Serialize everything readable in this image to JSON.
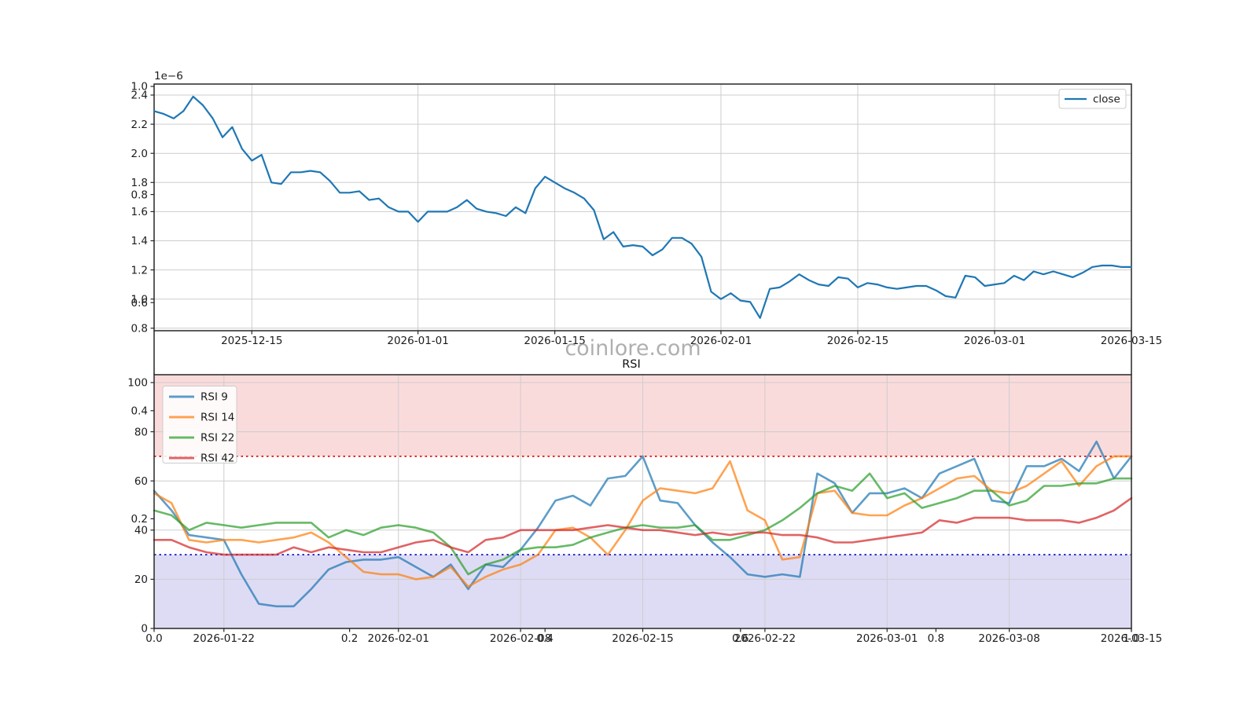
{
  "watermark": "coinlore.com",
  "overlay_axis": {
    "xtick_labels": [
      "0.0",
      "0.2",
      "0.4",
      "0.6",
      "0.8",
      "1.0"
    ],
    "ytick_labels": [
      "1.0",
      "0.8",
      "0.6",
      "0.4",
      "0.2",
      "0.0"
    ]
  },
  "chart_data": [
    {
      "type": "line",
      "role": "price",
      "title": "",
      "offset_text": "1e−6",
      "grid": true,
      "legend_position": "upper right",
      "x_start": "2025-12-05",
      "x_end": "2026-03-15",
      "xtick_labels": [
        "2025-12-15",
        "2026-01-01",
        "2026-01-15",
        "2026-02-01",
        "2026-02-15",
        "2026-03-01",
        "2026-03-15"
      ],
      "xtick_indices": [
        10,
        27,
        41,
        58,
        72,
        86,
        100
      ],
      "ytick_labels": [
        "2.4",
        "2.2",
        "2.0",
        "1.8",
        "1.6",
        "1.4",
        "1.2",
        "1.0",
        "0.8"
      ],
      "ytick_values": [
        2.4,
        2.2,
        2.0,
        1.8,
        1.6,
        1.4,
        1.2,
        1.0,
        0.8
      ],
      "ylim": [
        0.783,
        2.475
      ],
      "series": [
        {
          "name": "close",
          "color": "#1f77b4",
          "values": [
            2.29,
            2.27,
            2.24,
            2.29,
            2.39,
            2.33,
            2.24,
            2.11,
            2.18,
            2.03,
            1.95,
            1.99,
            1.8,
            1.79,
            1.87,
            1.87,
            1.88,
            1.87,
            1.81,
            1.73,
            1.73,
            1.74,
            1.68,
            1.69,
            1.63,
            1.6,
            1.6,
            1.53,
            1.6,
            1.6,
            1.6,
            1.63,
            1.68,
            1.62,
            1.6,
            1.59,
            1.57,
            1.63,
            1.59,
            1.76,
            1.84,
            1.8,
            1.76,
            1.73,
            1.69,
            1.61,
            1.41,
            1.46,
            1.36,
            1.37,
            1.36,
            1.3,
            1.34,
            1.42,
            1.42,
            1.38,
            1.29,
            1.05,
            1.0,
            1.04,
            0.99,
            0.98,
            0.87,
            1.07,
            1.08,
            1.12,
            1.17,
            1.13,
            1.1,
            1.09,
            1.15,
            1.14,
            1.08,
            1.11,
            1.1,
            1.08,
            1.07,
            1.08,
            1.09,
            1.09,
            1.06,
            1.02,
            1.01,
            1.16,
            1.15,
            1.09,
            1.1,
            1.11,
            1.16,
            1.13,
            1.19,
            1.17,
            1.19,
            1.17,
            1.15,
            1.18,
            1.22,
            1.23,
            1.23,
            1.22,
            1.22
          ]
        }
      ]
    },
    {
      "type": "line",
      "role": "rsi",
      "title": "RSI",
      "grid": true,
      "legend_position": "upper left",
      "x_start": "2026-01-18",
      "x_end": "2026-03-15",
      "xtick_labels": [
        "2026-01-22",
        "2026-02-01",
        "2026-02-08",
        "2026-02-15",
        "2026-02-22",
        "2026-03-01",
        "2026-03-08",
        "2026-03-15"
      ],
      "xtick_indices": [
        4,
        14,
        21,
        28,
        35,
        42,
        49,
        56
      ],
      "ytick_labels": [
        "100",
        "80",
        "60",
        "40",
        "20",
        "0"
      ],
      "ytick_values": [
        100,
        80,
        60,
        40,
        20,
        0
      ],
      "ylim": [
        0,
        100
      ],
      "hlines": [
        {
          "value": 70,
          "color": "#dd1111",
          "style": "dotted",
          "name": "overbought-line"
        },
        {
          "value": 30,
          "color": "#1414c8",
          "style": "dotted",
          "name": "oversold-line"
        }
      ],
      "bands": [
        {
          "from": 70,
          "to": 103,
          "color": "#fadbdb",
          "name": "overbought-band"
        },
        {
          "from": 0,
          "to": 30,
          "color": "#dedcf4",
          "name": "oversold-band"
        }
      ],
      "series": [
        {
          "name": "RSI 9",
          "color": "#1f77b4",
          "values": [
            56,
            48,
            38,
            37,
            36,
            22,
            10,
            9,
            9,
            16,
            24,
            27,
            28,
            28,
            29,
            25,
            21,
            26,
            16,
            26,
            25,
            32,
            41,
            52,
            54,
            50,
            61,
            62,
            70,
            52,
            51,
            42,
            35,
            29,
            22,
            21,
            22,
            21,
            63,
            59,
            47,
            55,
            55,
            57,
            53,
            63,
            66,
            69,
            52,
            51,
            66,
            66,
            69,
            64,
            76,
            61,
            70
          ]
        },
        {
          "name": "RSI 14",
          "color": "#ff7f0e",
          "values": [
            55,
            51,
            36,
            35,
            36,
            36,
            35,
            36,
            37,
            39,
            35,
            29,
            23,
            22,
            22,
            20,
            21,
            25,
            17,
            21,
            24,
            26,
            30,
            40,
            41,
            37,
            30,
            40,
            52,
            57,
            56,
            55,
            57,
            68,
            48,
            44,
            28,
            29,
            55,
            56,
            47,
            46,
            46,
            50,
            53,
            57,
            61,
            62,
            56,
            55,
            58,
            63,
            68,
            58,
            66,
            70,
            70
          ]
        },
        {
          "name": "RSI 22",
          "color": "#2ca02c",
          "values": [
            48,
            46,
            40,
            43,
            42,
            41,
            42,
            43,
            43,
            43,
            37,
            40,
            38,
            41,
            42,
            41,
            39,
            33,
            22,
            26,
            28,
            32,
            33,
            33,
            34,
            37,
            39,
            41,
            42,
            41,
            41,
            42,
            36,
            36,
            38,
            40,
            44,
            49,
            55,
            58,
            56,
            63,
            53,
            55,
            49,
            51,
            53,
            56,
            56,
            50,
            52,
            58,
            58,
            59,
            59,
            61,
            61
          ]
        },
        {
          "name": "RSI 42",
          "color": "#d62728",
          "values": [
            36,
            36,
            33,
            31,
            30,
            30,
            30,
            30,
            33,
            31,
            33,
            32,
            31,
            31,
            33,
            35,
            36,
            33,
            31,
            36,
            37,
            40,
            40,
            40,
            40,
            41,
            42,
            41,
            40,
            40,
            39,
            38,
            39,
            38,
            39,
            39,
            38,
            38,
            37,
            35,
            35,
            36,
            37,
            38,
            39,
            44,
            43,
            45,
            45,
            45,
            44,
            44,
            44,
            43,
            45,
            48,
            53
          ]
        }
      ]
    }
  ]
}
